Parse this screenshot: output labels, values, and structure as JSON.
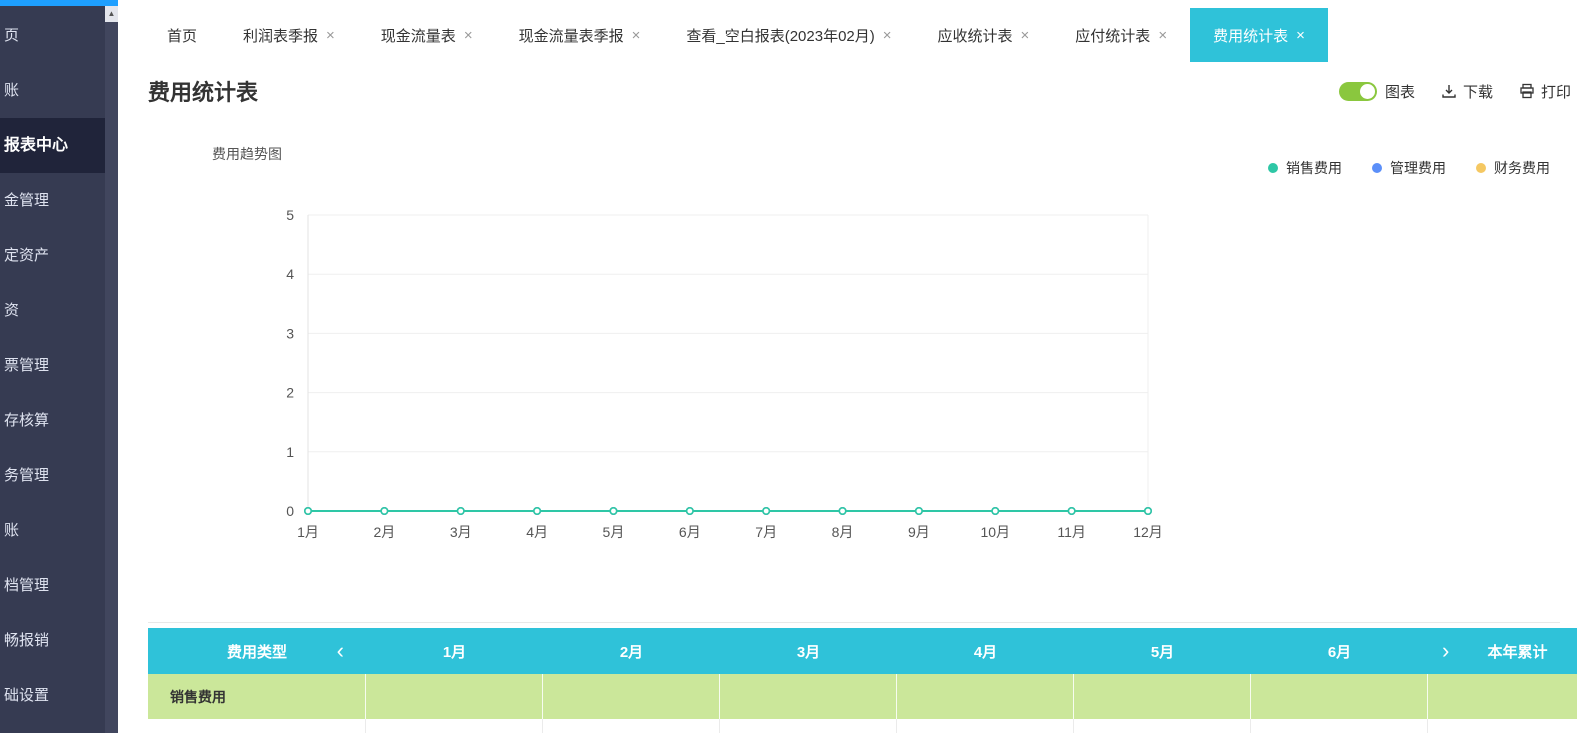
{
  "colors": {
    "accent_cyan": "#2fc2d9",
    "sidebar_bg": "#363b52",
    "sidebar_active_bg": "#20243a",
    "top_accent_blue": "#1e9fff",
    "toggle_green": "#8ac73e",
    "row_green": "#cbe79a"
  },
  "ui": {
    "close": "×",
    "scroll_up": "▲",
    "prev": "‹",
    "next": "›"
  },
  "sidebar": {
    "items": [
      {
        "label": "页"
      },
      {
        "label": "账"
      },
      {
        "label": "报表中心",
        "active": true
      },
      {
        "label": "金管理"
      },
      {
        "label": "定资产"
      },
      {
        "label": "资"
      },
      {
        "label": "票管理"
      },
      {
        "label": "存核算"
      },
      {
        "label": "务管理"
      },
      {
        "label": "账"
      },
      {
        "label": "档管理"
      },
      {
        "label": "畅报销"
      },
      {
        "label": "础设置"
      }
    ]
  },
  "tabs": {
    "items": [
      {
        "label": "首页",
        "closable": false
      },
      {
        "label": "利润表季报",
        "closable": true
      },
      {
        "label": "现金流量表",
        "closable": true
      },
      {
        "label": "现金流量表季报",
        "closable": true
      },
      {
        "label": "查看_空白报表(2023年02月)",
        "closable": true
      },
      {
        "label": "应收统计表",
        "closable": true
      },
      {
        "label": "应付统计表",
        "closable": true
      },
      {
        "label": "费用统计表",
        "closable": true,
        "active": true
      }
    ]
  },
  "page": {
    "title": "费用统计表",
    "toolbar": {
      "chart_toggle_label": "图表",
      "chart_toggle_on": true,
      "download_label": "下载",
      "print_label": "打印"
    }
  },
  "chart_data": {
    "type": "line",
    "title": "费用趋势图",
    "x": [
      "1月",
      "2月",
      "3月",
      "4月",
      "5月",
      "6月",
      "7月",
      "8月",
      "9月",
      "10月",
      "11月",
      "12月"
    ],
    "series": [
      {
        "name": "销售费用",
        "color": "#2ec7a6",
        "values": [
          0,
          0,
          0,
          0,
          0,
          0,
          0,
          0,
          0,
          0,
          0,
          0
        ]
      },
      {
        "name": "管理费用",
        "color": "#5b8ff9",
        "values": [
          0,
          0,
          0,
          0,
          0,
          0,
          0,
          0,
          0,
          0,
          0,
          0
        ]
      },
      {
        "name": "财务费用",
        "color": "#f5c862",
        "values": [
          0,
          0,
          0,
          0,
          0,
          0,
          0,
          0,
          0,
          0,
          0,
          0
        ]
      }
    ],
    "ylim": [
      0,
      5
    ],
    "yticks": [
      0,
      1,
      2,
      3,
      4,
      5
    ],
    "grid": true,
    "legend_position": "top-right"
  },
  "table": {
    "header": [
      "费用类型",
      "1月",
      "2月",
      "3月",
      "4月",
      "5月",
      "6月",
      "本年累计"
    ],
    "rows": [
      {
        "name": "销售费用",
        "values": [
          "",
          "",
          "",
          "",
          "",
          "",
          ""
        ]
      }
    ]
  }
}
